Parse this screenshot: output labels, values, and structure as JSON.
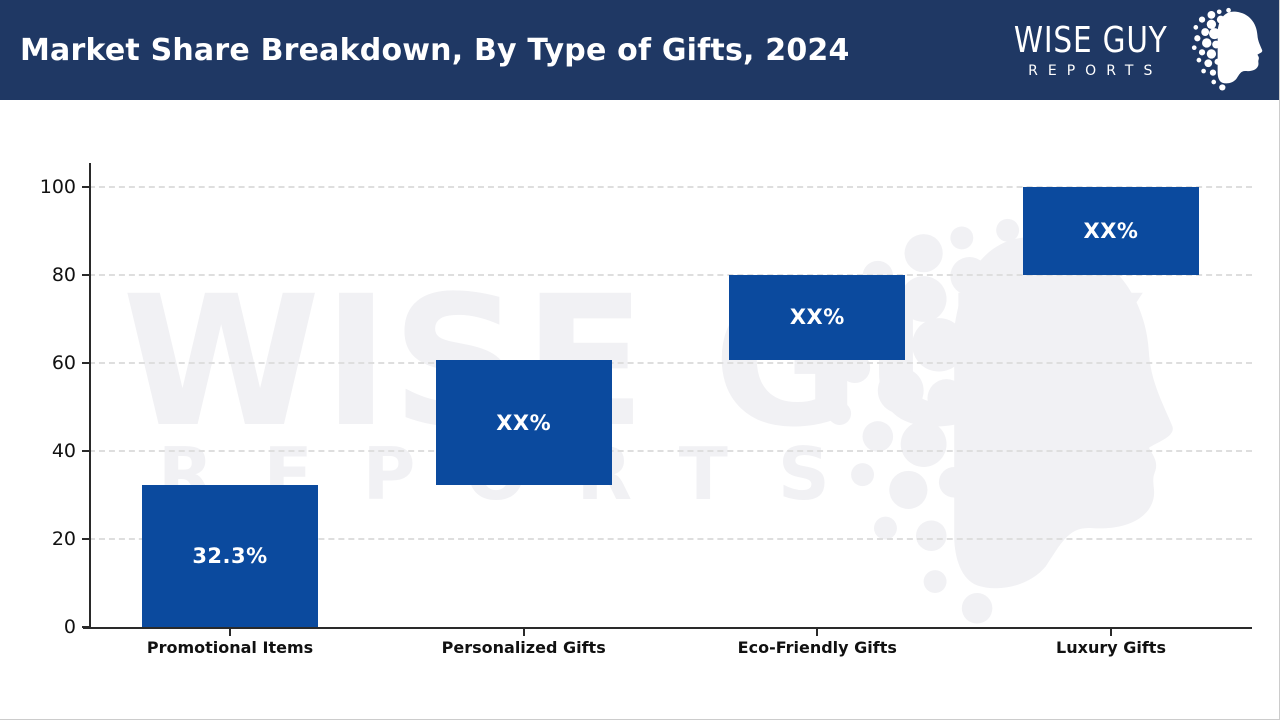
{
  "header": {
    "title": "Market Share Breakdown, By Type of Gifts, 2024",
    "logo": {
      "line1": "WISE GUY",
      "line2": "REPORTS"
    }
  },
  "watermark": {
    "line1": "WISE GUY",
    "line2": "REPORTS"
  },
  "colors": {
    "header_bg": "#1f3864",
    "bar": "#0b4a9e",
    "bar_label": "#ffffff",
    "watermark": "#f1f1f4",
    "axis": "#2a2a2a",
    "grid": "#dedede",
    "tick_text": "#111111",
    "category_text": "#111111"
  },
  "chart_data": {
    "type": "bar",
    "subtype": "waterfall",
    "title": "Market Share Breakdown, By Type of Gifts, 2024",
    "categories": [
      "Promotional Items",
      "Personalized Gifts",
      "Eco-Friendly Gifts",
      "Luxury Gifts"
    ],
    "segments": [
      {
        "category": "Promotional Items",
        "start": 0,
        "end": 32.3,
        "label": "32.3%"
      },
      {
        "category": "Personalized Gifts",
        "start": 32.3,
        "end": 60.6,
        "label": "XX%"
      },
      {
        "category": "Eco-Friendly Gifts",
        "start": 60.6,
        "end": 80.1,
        "label": "XX%"
      },
      {
        "category": "Luxury Gifts",
        "start": 80.1,
        "end": 100,
        "label": "XX%"
      }
    ],
    "ylim": [
      0,
      100
    ],
    "yticks": [
      0,
      20,
      40,
      60,
      80,
      100
    ],
    "xlabel": "",
    "ylabel": "",
    "grid": "dashed-horizontal",
    "legend": "none",
    "bar_color": "#0b4a9e",
    "value_label_color": "#ffffff"
  }
}
